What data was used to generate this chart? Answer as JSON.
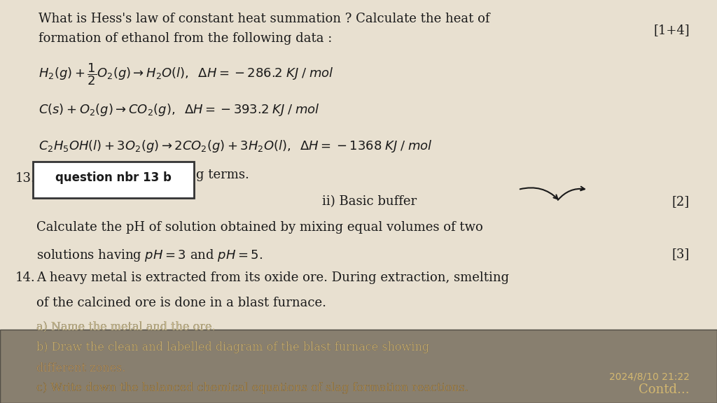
{
  "background_color": "#e8e0d0",
  "title_partial": "What is Hess's law of constant heat summation ? Calculate the heat of",
  "subtitle": "formation of ethanol from the following data :",
  "mark1": "[1+4]",
  "eq1": "$H_2(g)+\\dfrac{1}{2}O_2(g) \\rightarrow H_2O(l),\\;\\; \\Delta H = -286.2\\; KJ\\;/\\;mol$",
  "eq2": "$C(s)+O_2(g) \\rightarrow CO_2(g),\\;\\; \\Delta H = -393.2\\; KJ\\;/\\;mol$",
  "eq3": "$C_2H_5OH(l)+3O_2(g) \\rightarrow 2CO_2(g)+3H_2O(l),\\;\\; \\Delta H = -1368\\; KJ\\;/\\;mol$",
  "q13_label": "13.",
  "q13_box_text": "question nbr 13 b",
  "q13_terms": "g terms.",
  "q13_ii": "ii) Basic buffer",
  "q13_mark2": "[2]",
  "q13_calc": "Calculate the pH of solution obtained by mixing equal volumes of two",
  "q13_calc2": "solutions having $pH = 3$ and $pH = 5$.",
  "q13_mark3": "[3]",
  "q14_label": "14.",
  "q14_text": "A heavy metal is extracted from its oxide ore. During extraction, smelting",
  "q14_text2": "of the calcined ore is done in a blast furnace.",
  "q14a": "a) Name the metal and the ore.",
  "q14b": "b) Draw the clean and labelled diagram of the blast furnace showing",
  "q14b2": "different zones.",
  "q14c": "c) Write down the balanced chemical equations of slag formation reactions.",
  "contd": "Contd...",
  "timestamp": "2024/8/10 21:22",
  "text_color": "#1a1a1a",
  "box_bg": "#ffffff",
  "box_border": "#333333"
}
